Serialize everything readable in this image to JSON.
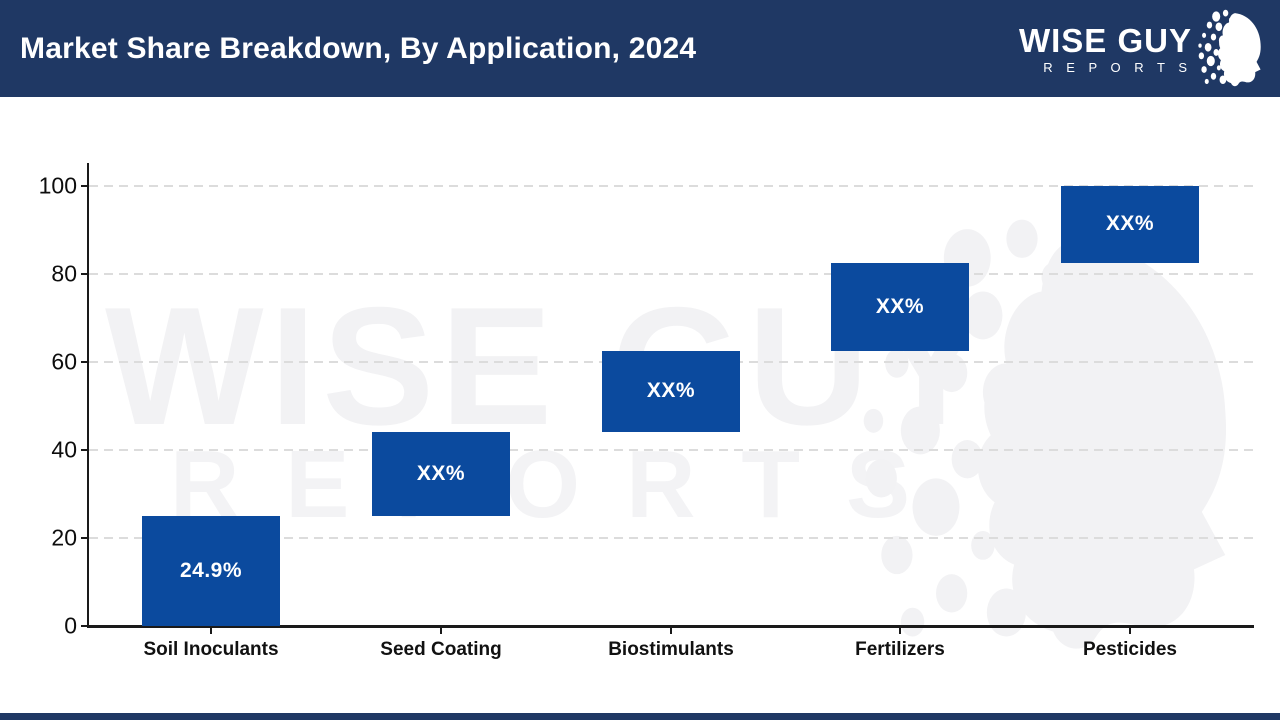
{
  "header": {
    "title": "Market Share Breakdown, By Application, 2024",
    "logo": {
      "line1": "WISE GUY",
      "line2": "R E P O R T S"
    }
  },
  "watermark": {
    "line1": "WISE GUY",
    "line2": "REPORTS"
  },
  "footer": {},
  "colors": {
    "header_bg": "#1f3864",
    "footer_bg": "#1f3864",
    "bar": "#0b4a9e",
    "axis": "#1a1a1a",
    "grid": "#dcdcdc",
    "bar_label": "#ffffff",
    "watermark": "#f2f2f4"
  },
  "chart_data": {
    "type": "bar",
    "subtype": "floating-waterfall",
    "title": "Market Share Breakdown, By Application, 2024",
    "categories": [
      "Soil Inoculants",
      "Seed Coating",
      "Biostimulants",
      "Fertilizers",
      "Pesticides"
    ],
    "segments": [
      [
        0,
        24.9
      ],
      [
        24.9,
        44.2
      ],
      [
        44.2,
        62.4
      ],
      [
        62.4,
        82.6
      ],
      [
        82.6,
        100
      ]
    ],
    "labels": [
      "24.9%",
      "XX%",
      "XX%",
      "XX%",
      "XX%"
    ],
    "yticks": [
      0,
      20,
      40,
      60,
      80,
      100
    ],
    "ylim": [
      0,
      105
    ],
    "xlabel": "",
    "ylabel": "",
    "grid": "horizontal-dashed",
    "legend": "none",
    "bar_color": "#0b4a9e"
  }
}
